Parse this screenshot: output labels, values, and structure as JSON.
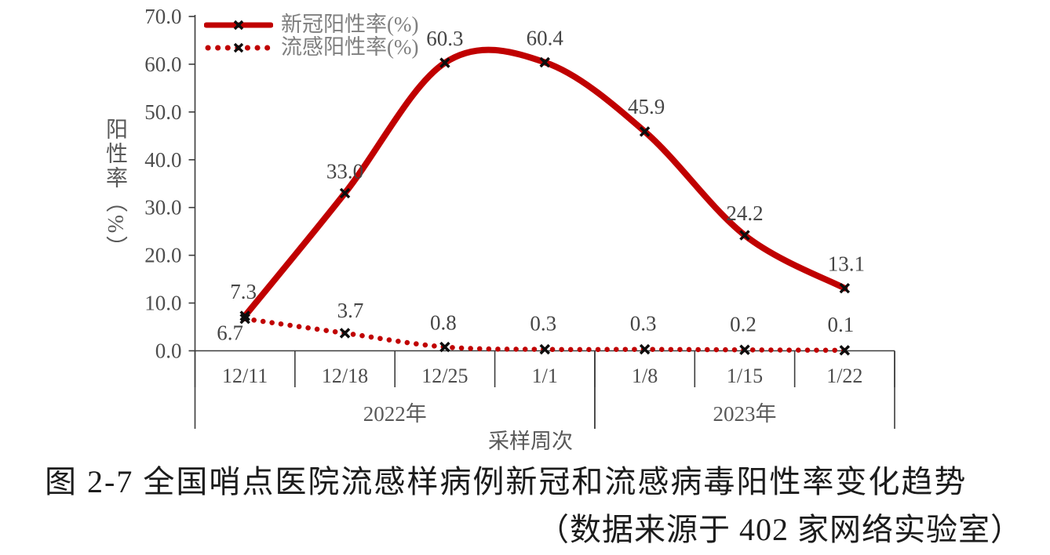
{
  "figure": {
    "caption_line1": "图 2-7 全国哨点医院流感样病例新冠和流感病毒阳性率变化趋势",
    "caption_line2": "（数据来源于 402 家网络实验室）"
  },
  "chart_data": {
    "type": "line",
    "title": "",
    "xlabel": "采样周次",
    "ylabel": "阳性率（%）",
    "ylim": [
      0,
      70
    ],
    "ytick_step": 10,
    "yticks": [
      "70.0",
      "60.0",
      "50.0",
      "40.0",
      "30.0",
      "20.0",
      "10.0",
      "0.0"
    ],
    "categories": [
      "12/11",
      "12/18",
      "12/25",
      "1/1",
      "1/8",
      "1/15",
      "1/22"
    ],
    "year_groups": [
      {
        "label": "2022年",
        "span": [
          0,
          3
        ]
      },
      {
        "label": "2023年",
        "span": [
          4,
          6
        ]
      }
    ],
    "series": [
      {
        "name": "新冠阳性率(%)",
        "style": "solid",
        "marker": "x",
        "color": "#c00000",
        "values": [
          7.3,
          33.0,
          60.3,
          60.4,
          45.9,
          24.2,
          13.1
        ],
        "labels": [
          "7.3",
          "33.0",
          "60.3",
          "60.4",
          "45.9",
          "24.2",
          "13.1"
        ]
      },
      {
        "name": "流感阳性率(%)",
        "style": "dotted",
        "marker": "x",
        "color": "#c00000",
        "values": [
          6.7,
          3.7,
          0.8,
          0.3,
          0.3,
          0.2,
          0.1
        ],
        "labels": [
          "6.7",
          "3.7",
          "0.8",
          "0.3",
          "0.3",
          "0.2",
          "0.1"
        ]
      }
    ],
    "legend_position": "top-left",
    "grid": false,
    "colors": {
      "series_red": "#c00000",
      "marker_black": "#0d0d0d",
      "axis": "#3d3d3d",
      "tick_text": "#4d4d4d",
      "data_label_text": "#454545",
      "year_text": "#595959",
      "legend_text": "#7f7f7f",
      "caption_text": "#1c1c1c"
    }
  }
}
